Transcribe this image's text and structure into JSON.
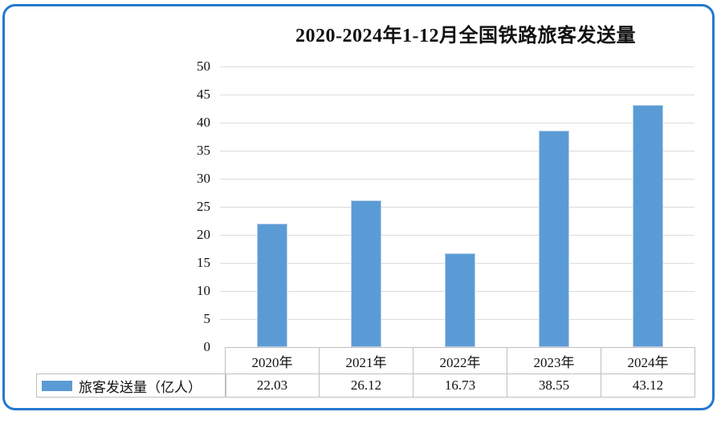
{
  "chart_data": {
    "type": "bar",
    "title": "2020-2024年1-12月全国铁路旅客发送量",
    "categories": [
      "2020年",
      "2021年",
      "2022年",
      "2023年",
      "2024年"
    ],
    "series": [
      {
        "name": "旅客发送量（亿人）",
        "values": [
          22.03,
          26.12,
          16.73,
          38.55,
          43.12
        ]
      }
    ],
    "xlabel": "",
    "ylabel": "",
    "ylim": [
      0,
      50
    ],
    "yticks": [
      0,
      5,
      10,
      15,
      20,
      25,
      30,
      35,
      40,
      45,
      50
    ],
    "grid": true,
    "legend_position": "bottom-left-table"
  },
  "table": {
    "legend_label": "旅客发送量（亿人）",
    "columns": [
      "2020年",
      "2021年",
      "2022年",
      "2023年",
      "2024年"
    ],
    "values": [
      "22.03",
      "26.12",
      "16.73",
      "38.55",
      "43.12"
    ]
  },
  "colors": {
    "bar": "#5b9bd5",
    "bar_border": "#b5d0ec",
    "frame_border": "#2478cf",
    "gridline": "#dcdcdc",
    "table_border": "#bfbfbf",
    "text": "#111111",
    "background": "#ffffff"
  }
}
